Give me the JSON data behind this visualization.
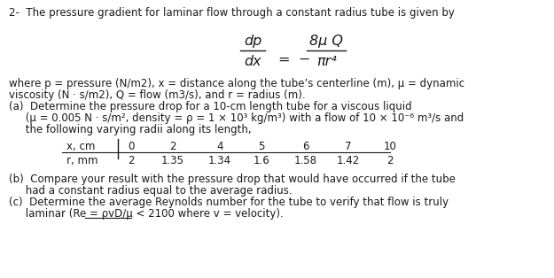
{
  "title": "2-  The pressure gradient for laminar flow through a constant radius tube is given by",
  "eq_num_left": "dp",
  "eq_den_left": "dx",
  "eq_num_right": "8μ Q",
  "eq_den_right": "πr⁴",
  "where_line1": "where p = pressure (N/m2), x = distance along the tube’s centerline (m), μ = dynamic",
  "where_line2": "viscosity (N · s/m2), Q = flow (m3/s), and r = radius (m).",
  "part_a1": "(a)  Determine the pressure drop for a 10-cm length tube for a viscous liquid",
  "part_a2": "     (μ = 0.005 N · s/m², density = ρ = 1 × 10³ kg/m³) with a flow of 10 × 10⁻⁶ m³/s and",
  "part_a3": "     the following varying radii along its length,",
  "tbl_hdr_x": "x, cm",
  "tbl_hdr_r": "r, mm",
  "tbl_x": [
    "0",
    "2",
    "4",
    "5",
    "6",
    "7",
    "10"
  ],
  "tbl_r": [
    "2",
    "1.35",
    "1.34",
    "1.6",
    "1.58",
    "1.42",
    "2"
  ],
  "part_b1": "(b)  Compare your result with the pressure drop that would have occurred if the tube",
  "part_b2": "     had a constant radius equal to the average radius.",
  "part_c1": "(c)  Determine the average Reynolds number for the tube to verify that flow is truly",
  "part_c2": "     laminar (Re = ρvD/μ < 2100 where v = velocity).",
  "underline_text": "ρvD/μ",
  "bg": "#ffffff",
  "fg": "#1a1a1a",
  "fs_main": 8.5,
  "fs_eq": 11.5
}
